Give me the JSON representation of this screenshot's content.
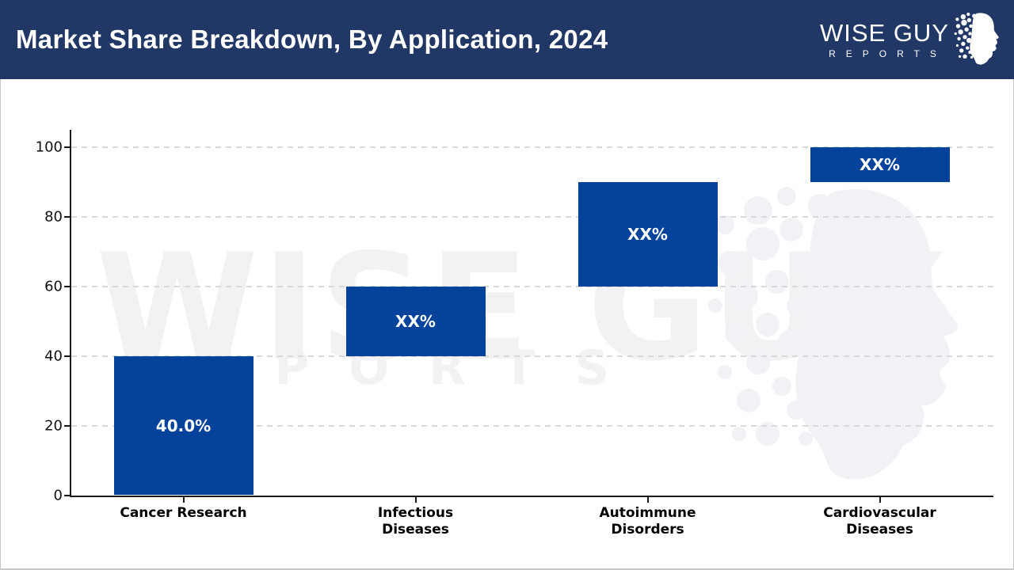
{
  "header": {
    "title": "Market Share Breakdown, By Application, 2024",
    "logo": {
      "line1": "WISE GUY",
      "line2": "REPORTS"
    }
  },
  "watermark": {
    "line1": "WISE GUY",
    "line2": "REPORTS"
  },
  "colors": {
    "header_bg": "#213765",
    "bar": "#04429b",
    "grid": "#d9d9d9",
    "axis": "#1a1a1a",
    "watermark": "#f2f2f5",
    "title_text": "#ffffff",
    "bar_label_text": "#ffffff"
  },
  "chart_data": {
    "type": "bar",
    "variant": "waterfall",
    "title": "Market Share Breakdown, By Application, 2024",
    "xlabel": "",
    "ylabel": "",
    "ylim": [
      0,
      100
    ],
    "yticks": [
      0,
      20,
      40,
      60,
      80,
      100
    ],
    "grid": "horizontal-dashed",
    "legend": "none",
    "bars": [
      {
        "category": "Cancer Research",
        "category_lines": [
          "Cancer Research"
        ],
        "start": 0,
        "end": 40,
        "height": 40,
        "value_label": "40.0%"
      },
      {
        "category": "Infectious Diseases",
        "category_lines": [
          "Infectious",
          "Diseases"
        ],
        "start": 40,
        "end": 60,
        "height": 20,
        "value_label": "XX%"
      },
      {
        "category": "Autoimmune Disorders",
        "category_lines": [
          "Autoimmune",
          "Disorders"
        ],
        "start": 60,
        "end": 90,
        "height": 30,
        "value_label": "XX%"
      },
      {
        "category": "Cardiovascular Diseases",
        "category_lines": [
          "Cardiovascular",
          "Diseases"
        ],
        "start": 90,
        "end": 100,
        "height": 10,
        "value_label": "XX%"
      }
    ]
  }
}
